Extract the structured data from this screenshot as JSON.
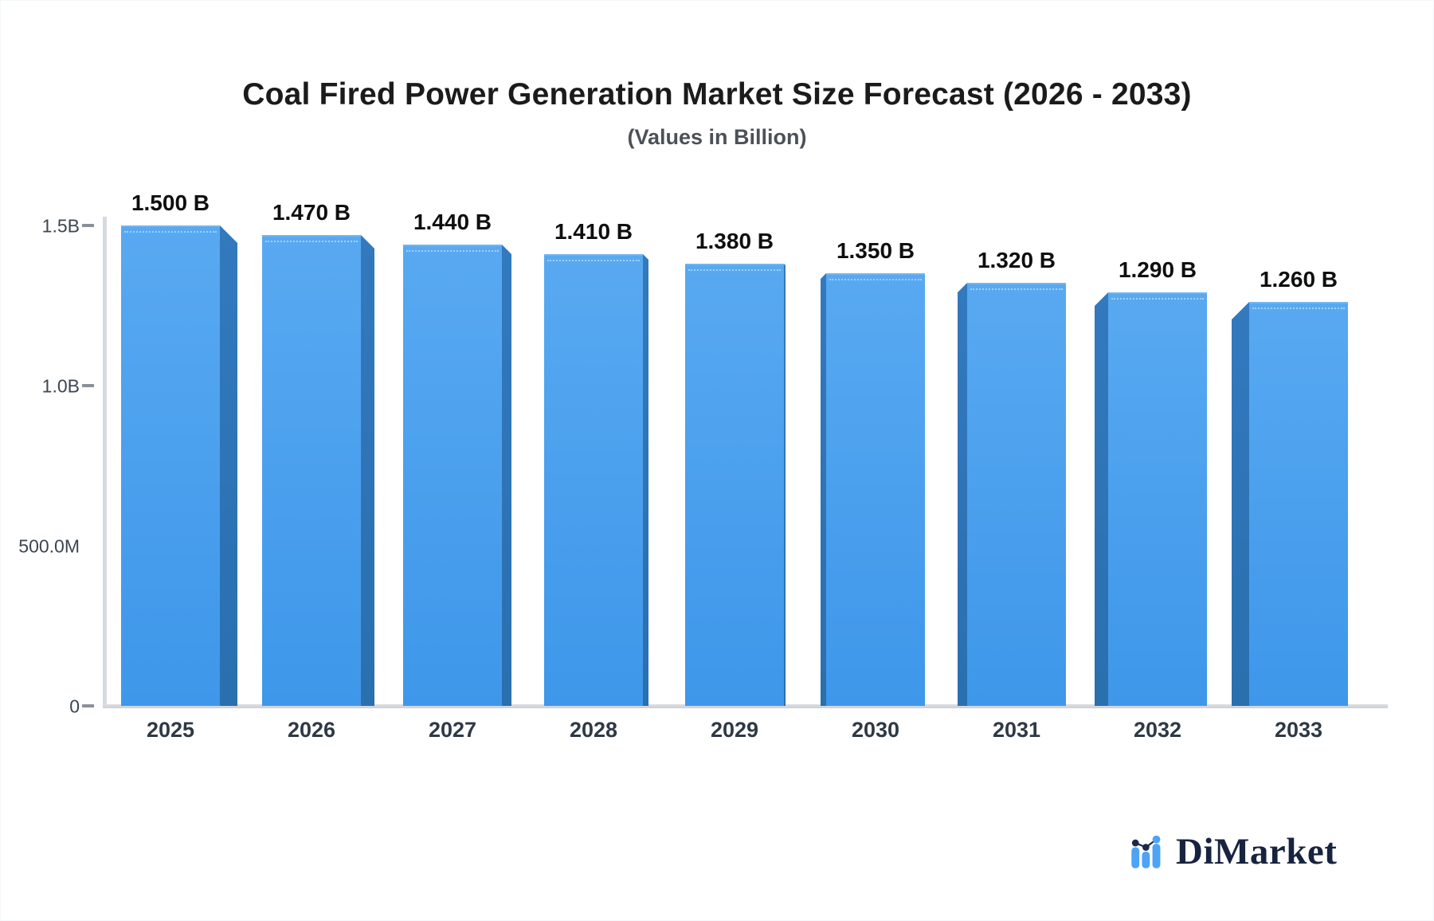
{
  "title": "Coal Fired Power Generation Market Size Forecast (2026 - 2033)",
  "subtitle": "(Values in Billion)",
  "chart_data": {
    "type": "bar",
    "categories": [
      "2025",
      "2026",
      "2027",
      "2028",
      "2029",
      "2030",
      "2031",
      "2032",
      "2033"
    ],
    "values": [
      1.5,
      1.47,
      1.44,
      1.41,
      1.38,
      1.35,
      1.32,
      1.29,
      1.26
    ],
    "bar_labels": [
      "1.500 B",
      "1.470 B",
      "1.440 B",
      "1.410 B",
      "1.380 B",
      "1.350 B",
      "1.320 B",
      "1.290 B",
      "1.260 B"
    ],
    "title": "Coal Fired Power Generation Market Size Forecast (2026 - 2033)",
    "subtitle": "(Values in Billion)",
    "xlabel": "",
    "ylabel": "",
    "unit": "Billion",
    "ylim": [
      0,
      1.5
    ],
    "grid": false,
    "legend": null,
    "y_axis": {
      "ticks": [
        {
          "label": "1.5B",
          "value": 1.5,
          "dash": true
        },
        {
          "label": "1.0B",
          "value": 1.0,
          "dash": true
        },
        {
          "label": "500.0M",
          "value": 0.5,
          "dash": false
        },
        {
          "label": "0",
          "value": 0.0,
          "dash": true
        }
      ]
    },
    "colors": {
      "bar_face_top": "#58a9f1",
      "bar_face_bottom": "#3e97ea",
      "bar_side": "#2d76b8",
      "axis": "#d6d9de",
      "value_label": "#0f0f0f",
      "category_label": "#2e3946"
    }
  },
  "watermark": {
    "name": "DiMarket",
    "icon": "mini-bar-chart-logo-icon",
    "text_color": "#17233f",
    "icon_bar_color": "#4da3f5",
    "icon_dot_color": "#1b2a4a"
  }
}
